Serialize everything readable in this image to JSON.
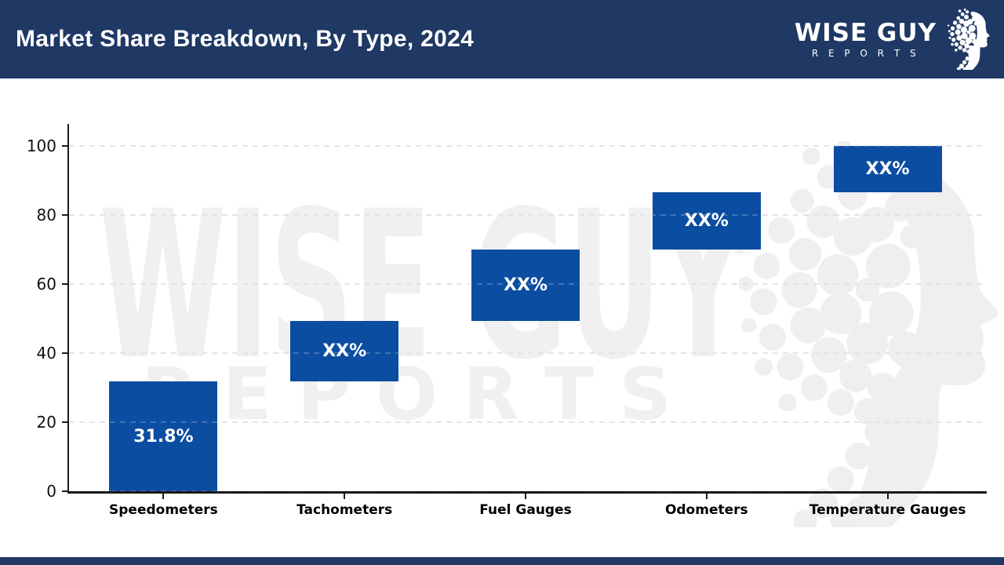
{
  "header": {
    "title": "Market Share Breakdown, By Type, 2024",
    "bg_color": "#1f3864",
    "logo": {
      "line1": "WISE GUY",
      "line2": "R E P O R T S"
    }
  },
  "watermark": {
    "line1": "WISE GUY",
    "line2": "R E P O R T S"
  },
  "footer": {
    "bg_color": "#1f3864"
  },
  "chart_data": {
    "type": "bar",
    "subtype": "waterfall",
    "title": "Market Share Breakdown, By Type, 2024",
    "xlabel": "",
    "ylabel": "",
    "ylim": [
      0,
      100
    ],
    "yticks": [
      0,
      20,
      40,
      60,
      80,
      100
    ],
    "grid": "horizontal dashed",
    "legend": "none",
    "bar_color": "#0b4da1",
    "value_label_color": "#ffffff",
    "axis_color": "#1a1a1a",
    "grid_color": "#dcdcdc",
    "categories": [
      "Speedometers",
      "Tachometers",
      "Fuel Gauges",
      "Odometers",
      "Temperature Gauges"
    ],
    "segments": [
      {
        "category": "Speedometers",
        "start": 0,
        "end": 31.8,
        "delta": 31.8,
        "label": "31.8%"
      },
      {
        "category": "Tachometers",
        "start": 31.8,
        "end": 49.4,
        "delta": 17.6,
        "label": "XX%"
      },
      {
        "category": "Fuel Gauges",
        "start": 49.4,
        "end": 70.0,
        "delta": 20.6,
        "label": "XX%"
      },
      {
        "category": "Odometers",
        "start": 70.0,
        "end": 86.6,
        "delta": 16.6,
        "label": "XX%"
      },
      {
        "category": "Temperature Gauges",
        "start": 86.6,
        "end": 100.0,
        "delta": 13.4,
        "label": "XX%"
      }
    ]
  }
}
